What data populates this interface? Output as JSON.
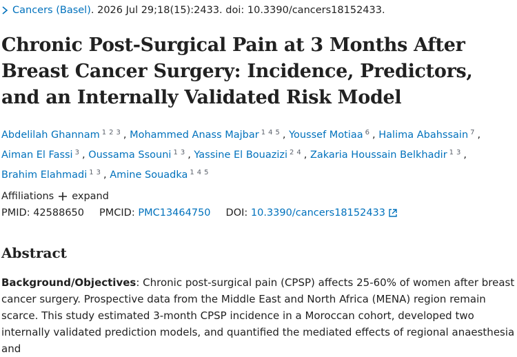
{
  "citation": {
    "journal": "Cancers (Basel)",
    "details": ". 2026 Jul 29;18(15):2433. doi: 10.3390/cancers18152433."
  },
  "title": "Chronic Post-Surgical Pain at 3 Months After Breast Cancer Surgery: Incidence, Predictors, and an Internally Validated Risk Model",
  "authors": [
    {
      "name": "Abdelilah Ghannam",
      "affiliations": [
        1,
        2,
        3
      ]
    },
    {
      "name": "Mohammed Anass Majbar",
      "affiliations": [
        1,
        4,
        5
      ]
    },
    {
      "name": "Youssef Motiaa",
      "affiliations": [
        6
      ]
    },
    {
      "name": "Halima Abahssain",
      "affiliations": [
        7
      ]
    },
    {
      "name": "Aiman El Fassi",
      "affiliations": [
        3
      ]
    },
    {
      "name": "Oussama Ssouni",
      "affiliations": [
        1,
        3
      ]
    },
    {
      "name": "Yassine El Bouazizi",
      "affiliations": [
        2,
        4
      ]
    },
    {
      "name": "Zakaria Houssain Belkhadir",
      "affiliations": [
        1,
        3
      ]
    },
    {
      "name": "Brahim Elahmadi",
      "affiliations": [
        1,
        3
      ]
    },
    {
      "name": "Amine Souadka",
      "affiliations": [
        1,
        4,
        5
      ]
    }
  ],
  "affiliations": {
    "label": "Affiliations",
    "toggle": "expand"
  },
  "identifiers": {
    "pmid_label": "PMID:",
    "pmid": "42588650",
    "pmcid_label": "PMCID:",
    "pmcid": "PMC13464750",
    "doi_label": "DOI:",
    "doi": "10.3390/cancers18152433"
  },
  "abstract": {
    "heading": "Abstract",
    "section": "Background/Objectives",
    "text": ": Chronic post-surgical pain (CPSP) affects 25-60% of women after breast cancer surgery. Prospective data from the Middle East and North Africa (MENA) region remain scarce. This study estimated 3-month CPSP incidence in a Moroccan cohort, developed two internally validated prediction models, and quantified the mediated effects of regional anaesthesia and"
  }
}
